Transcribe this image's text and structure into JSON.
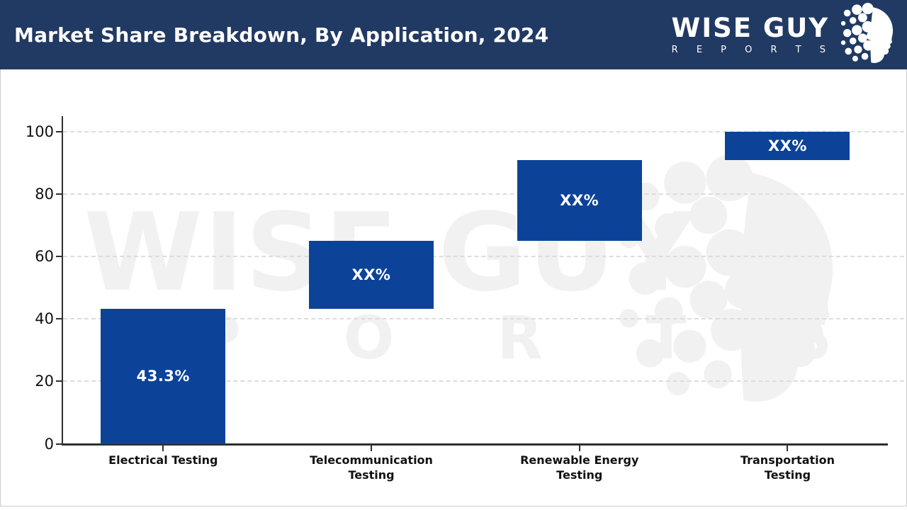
{
  "header": {
    "title": "Market Share Breakdown, By Application, 2024",
    "logo": {
      "line1": "WISE GUY",
      "line2": "R E P O R T S"
    }
  },
  "watermark": {
    "line1": "WISE GUY",
    "line2": "P O R T S"
  },
  "colors": {
    "header_bg": "#213a64",
    "bar": "#0c4399",
    "bar_label": "#ffffff",
    "grid": "#dcdcdc",
    "axis": "#2f2f2f",
    "watermark": "#f1f1f1"
  },
  "chart_data": {
    "type": "bar",
    "subtype": "waterfall",
    "title": "Market Share Breakdown, By Application, 2024",
    "categories": [
      "Electrical Testing",
      "Telecommunication\nTesting",
      "Renewable Energy\nTesting",
      "Transportation\nTesting"
    ],
    "segments": [
      {
        "start": 0,
        "end": 43.3,
        "label": "43.3%"
      },
      {
        "start": 43.3,
        "end": 65,
        "label": "XX%"
      },
      {
        "start": 65,
        "end": 91,
        "label": "XX%"
      },
      {
        "start": 91,
        "end": 100,
        "label": "XX%"
      }
    ],
    "yticks": [
      0,
      20,
      40,
      60,
      80,
      100
    ],
    "ylim": [
      0,
      105
    ],
    "grid": "horizontal-dashed",
    "legend": null
  }
}
